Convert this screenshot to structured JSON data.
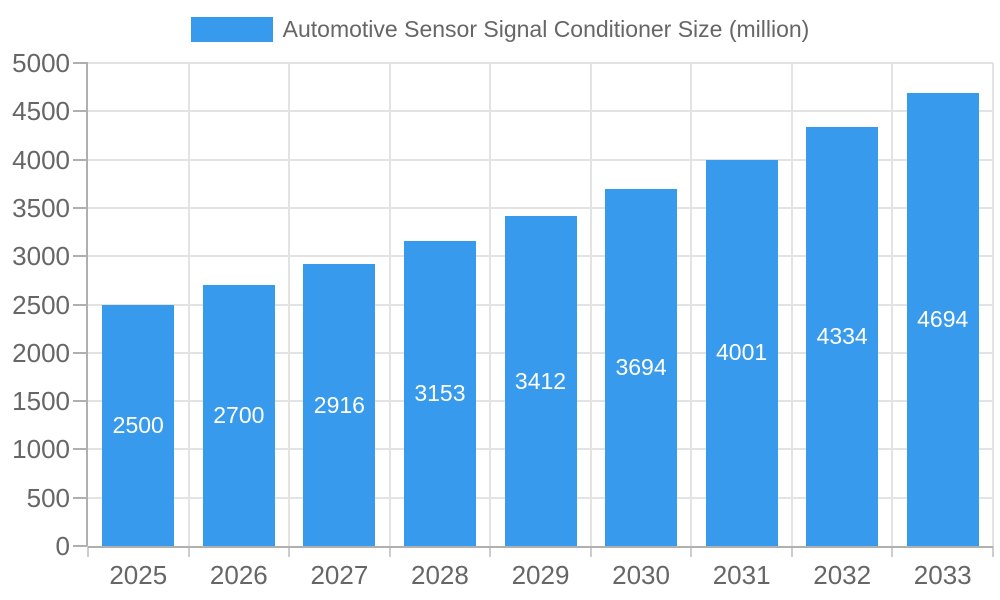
{
  "legend": {
    "label": "Automotive Sensor Signal Conditioner Size (million)"
  },
  "chart_data": {
    "type": "bar",
    "title": "Automotive Sensor Signal Conditioner Size (million)",
    "series_name": "Automotive Sensor Signal Conditioner Size (million)",
    "categories": [
      "2025",
      "2026",
      "2027",
      "2028",
      "2029",
      "2030",
      "2031",
      "2032",
      "2033"
    ],
    "values": [
      2500,
      2700,
      2916,
      3153,
      3412,
      3694,
      4001,
      4334,
      4694
    ],
    "xlabel": "",
    "ylabel": "",
    "ylim": [
      0,
      5000
    ],
    "ytick_step": 500,
    "grid": true,
    "legend_position": "top",
    "colors": {
      "bar": "#389AEC",
      "value_label": "#FFFFFF",
      "axis_text": "#666666",
      "grid_line": "#E3E3E3",
      "axis_line": "#B0B0B0",
      "x_tick": "#CDCDCD"
    }
  }
}
